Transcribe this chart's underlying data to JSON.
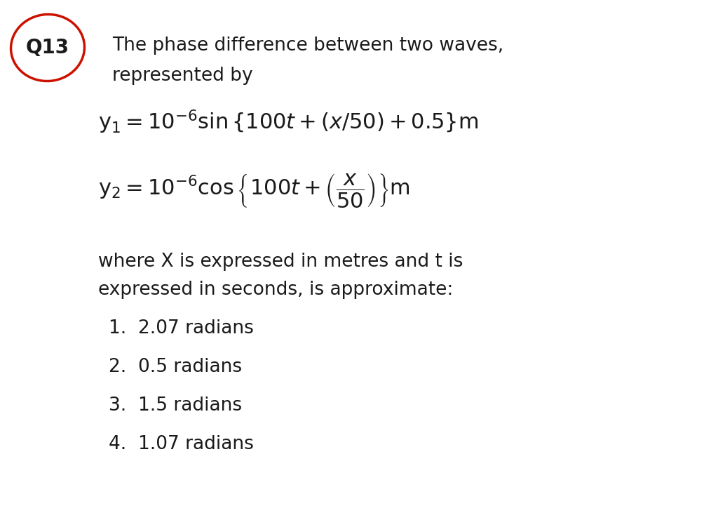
{
  "background_color": "#ffffff",
  "q_label": "Q13",
  "q_circle_color": "#cc1100",
  "title_line1": "The phase difference between two waves,",
  "title_line2": "represented by",
  "desc_line1": "where X is expressed in metres and t is",
  "desc_line2": "expressed in seconds, is approximate:",
  "options": [
    "1.  2.07 radians",
    "2.  0.5 radians",
    "3.  1.5 radians",
    "4.  1.07 radians"
  ],
  "text_color": "#1a1a1a",
  "font_size_title": 19,
  "font_size_eq": 22,
  "font_size_options": 19
}
